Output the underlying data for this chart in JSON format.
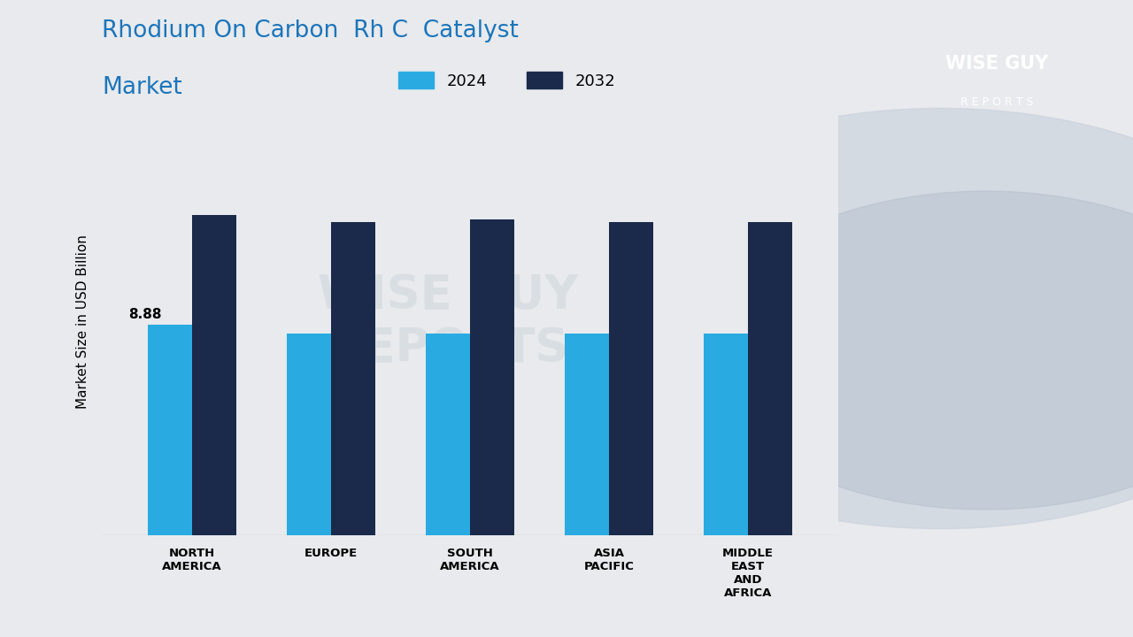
{
  "title_line1": "Rhodium On Carbon  Rh C  Catalyst",
  "title_line2": "Market",
  "ylabel": "Market Size in USD Billion",
  "categories": [
    "NORTH\nAMERICA",
    "EUROPE",
    "SOUTH\nAMERICA",
    "ASIA\nPACIFIC",
    "MIDDLE\nEAST\nAND\nAFRICA"
  ],
  "values_2024": [
    8.88,
    8.5,
    8.5,
    8.5,
    8.5
  ],
  "values_2032": [
    13.5,
    13.2,
    13.3,
    13.2,
    13.2
  ],
  "color_2024": "#29ABE2",
  "color_2032": "#1B2A4A",
  "bar_annotation": "8.88",
  "bg_color": "#E8EAED",
  "title_color": "#1B75BB",
  "right_panel_color": "#1B2A4A",
  "legend_labels": [
    "2024",
    "2032"
  ],
  "bar_width": 0.32,
  "ylim": [
    0,
    18
  ],
  "watermark_line1": "WISE GUY",
  "watermark_line2": "REPORTS",
  "logo_line1": "WISE GUY",
  "logo_line2": "R E P O R T S"
}
